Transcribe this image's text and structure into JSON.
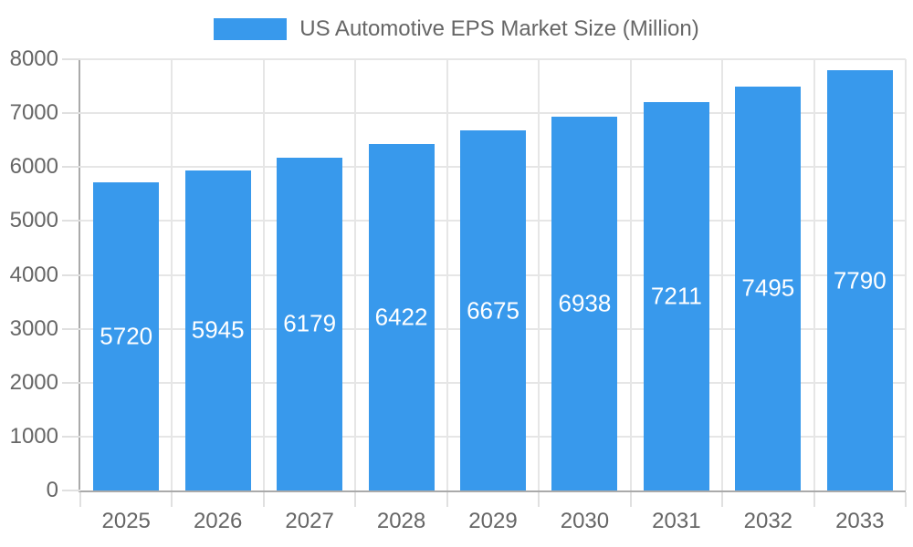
{
  "chart_data": {
    "type": "bar",
    "title": "",
    "legend_position": "top",
    "grid": true,
    "categories": [
      "2025",
      "2026",
      "2027",
      "2028",
      "2029",
      "2030",
      "2031",
      "2032",
      "2033"
    ],
    "series": [
      {
        "name": "US Automotive EPS Market Size (Million)",
        "values": [
          5720,
          5945,
          6179,
          6422,
          6675,
          6938,
          7211,
          7495,
          7790
        ]
      }
    ],
    "xlabel": "",
    "ylabel": "",
    "ylim": [
      0,
      8000
    ],
    "ytick_step": 1000,
    "yticks": [
      0,
      1000,
      2000,
      3000,
      4000,
      5000,
      6000,
      7000,
      8000
    ],
    "bar_labels_visible": true
  },
  "colors": {
    "bar": "#3899EC",
    "grid": "#E6E6E6",
    "axis_line": "#AAAAAA",
    "tick_mark": "#E0E0E0",
    "tick_text": "#666666",
    "bar_label_text": "#FFFFFF",
    "background": "#FFFFFF"
  }
}
